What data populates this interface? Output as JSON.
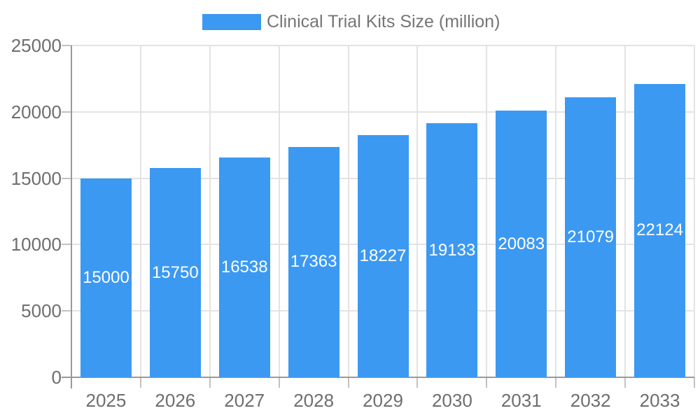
{
  "chart_data": {
    "type": "bar",
    "title": "Clinical Trial Kits Size (million)",
    "categories": [
      "2025",
      "2026",
      "2027",
      "2028",
      "2029",
      "2030",
      "2031",
      "2032",
      "2033"
    ],
    "values": [
      15000,
      15750,
      16538,
      17363,
      18227,
      19133,
      20083,
      21079,
      22124
    ],
    "series": [
      {
        "name": "Clinical Trial Kits Size (million)",
        "values": [
          15000,
          15750,
          16538,
          17363,
          18227,
          19133,
          20083,
          21079,
          22124
        ]
      }
    ],
    "xlabel": "",
    "ylabel": "",
    "ylim": [
      0,
      25000
    ],
    "yticks": [
      0,
      5000,
      10000,
      15000,
      20000,
      25000
    ],
    "grid": true,
    "legend_position": "top-center",
    "value_labels_position": "inside-center",
    "colors": {
      "bar": "#3C99F2",
      "value_label_text": "#FFFFFF",
      "axis_text": "#6E6E6E",
      "legend_text": "#757575",
      "gridline": "#E3E3E3",
      "axis_line": "#999999",
      "tick": "#C2C2C2",
      "background": "#FFFFFF"
    }
  }
}
